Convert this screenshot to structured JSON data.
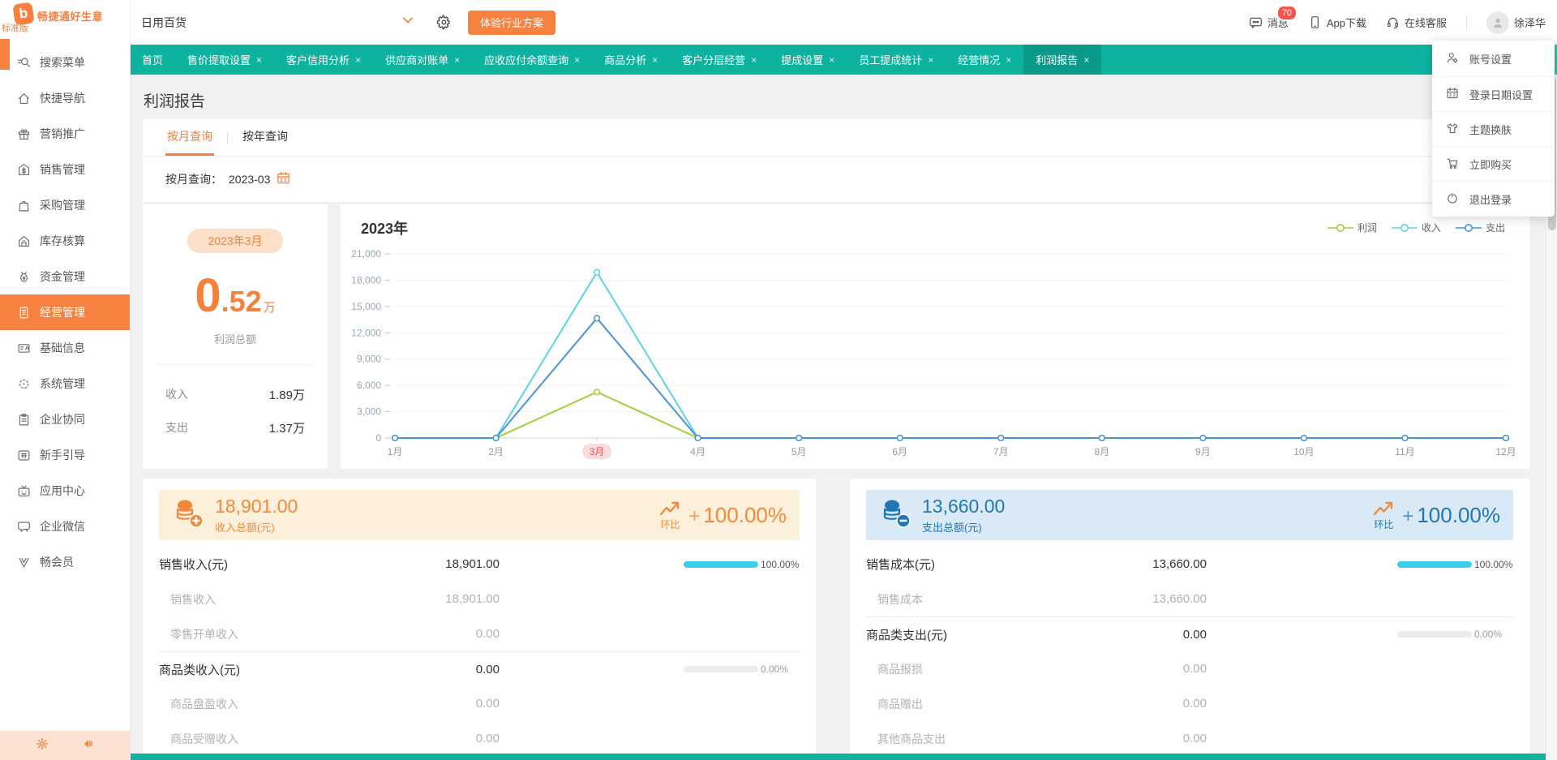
{
  "app": {
    "logo_text": "畅捷通好生意",
    "edition": "标准版",
    "logo_glyph": "b",
    "store_selector": "日用百货",
    "try_button": "体验行业方案",
    "messages_label": "消息",
    "messages_badge": "70",
    "app_download_label": "App下载",
    "online_service_label": "在线客服",
    "username": "徐泽华"
  },
  "sidebar": {
    "items": [
      {
        "key": "search",
        "label": "搜索菜单"
      },
      {
        "key": "quick-nav",
        "label": "快捷导航"
      },
      {
        "key": "marketing",
        "label": "营销推广"
      },
      {
        "key": "sales",
        "label": "销售管理"
      },
      {
        "key": "purchase",
        "label": "采购管理"
      },
      {
        "key": "inventory",
        "label": "库存核算"
      },
      {
        "key": "funds",
        "label": "资金管理"
      },
      {
        "key": "operations",
        "label": "经营管理",
        "active": true
      },
      {
        "key": "basic-info",
        "label": "基础信息"
      },
      {
        "key": "system",
        "label": "系统管理"
      },
      {
        "key": "collaboration",
        "label": "企业协同"
      },
      {
        "key": "beginner-guide",
        "label": "新手引导"
      },
      {
        "key": "app-center",
        "label": "应用中心"
      },
      {
        "key": "wecom",
        "label": "企业微信"
      },
      {
        "key": "member",
        "label": "畅会员"
      }
    ]
  },
  "tabs": [
    {
      "label": "首页",
      "closable": false
    },
    {
      "label": "售价提取设置",
      "closable": true
    },
    {
      "label": "客户信用分析",
      "closable": true
    },
    {
      "label": "供应商对账单",
      "closable": true
    },
    {
      "label": "应收应付余额查询",
      "closable": true
    },
    {
      "label": "商品分析",
      "closable": true
    },
    {
      "label": "客户分层经营",
      "closable": true
    },
    {
      "label": "提成设置",
      "closable": true
    },
    {
      "label": "员工提成统计",
      "closable": true
    },
    {
      "label": "经营情况",
      "closable": true
    },
    {
      "label": "利润报告",
      "closable": true,
      "active": true
    }
  ],
  "user_menu": {
    "items": [
      {
        "key": "account-settings",
        "label": "账号设置"
      },
      {
        "key": "login-date-settings",
        "label": "登录日期设置"
      },
      {
        "key": "theme-skin",
        "label": "主题换肤"
      },
      {
        "key": "buy-now",
        "label": "立即购买"
      },
      {
        "key": "logout",
        "label": "退出登录"
      }
    ]
  },
  "page": {
    "title": "利润报告",
    "query_tabs": [
      {
        "label": "按月查询",
        "active": true
      },
      {
        "label": "按年查询",
        "active": false
      }
    ],
    "query_label": "按月查询：",
    "query_value": "2023-03"
  },
  "summary": {
    "period": "2023年3月",
    "value_int": "0",
    "value_dec": ".52",
    "value_unit": "万",
    "value_label": "利润总额",
    "rows": [
      {
        "label": "收入",
        "value": "1.89万"
      },
      {
        "label": "支出",
        "value": "1.37万"
      }
    ]
  },
  "chart_data": {
    "type": "line",
    "title": "2023年",
    "categories": [
      "1月",
      "2月",
      "3月",
      "4月",
      "5月",
      "6月",
      "7月",
      "8月",
      "9月",
      "10月",
      "11月",
      "12月"
    ],
    "highlight_category": "3月",
    "series": [
      {
        "name": "利润",
        "color": "#a2ce39",
        "values": [
          0,
          0,
          5241,
          0,
          0,
          0,
          0,
          0,
          0,
          0,
          0,
          0
        ]
      },
      {
        "name": "收入",
        "color": "#5fd2e7",
        "values": [
          0,
          0,
          18901,
          0,
          0,
          0,
          0,
          0,
          0,
          0,
          0,
          0
        ]
      },
      {
        "name": "支出",
        "color": "#4795d8",
        "values": [
          0,
          0,
          13660,
          0,
          0,
          0,
          0,
          0,
          0,
          0,
          0,
          0
        ]
      }
    ],
    "yticks": [
      21000,
      18000,
      15000,
      12000,
      9000,
      6000,
      3000,
      0
    ],
    "ylim": [
      0,
      21000
    ],
    "grid": true,
    "legend_position": "top-right"
  },
  "income_card": {
    "total": "18,901.00",
    "total_label": "收入总额(元)",
    "ratio_label": "环比",
    "ratio_sign": "+",
    "ratio_value": "100.00%",
    "rows": [
      {
        "label": "销售收入(元)",
        "value": "18,901.00",
        "level": 0,
        "bar_pct": 100,
        "bar_label": "100.00%"
      },
      {
        "label": "销售收入",
        "value": "18,901.00",
        "level": 1
      },
      {
        "label": "零售开单收入",
        "value": "0.00",
        "level": 1
      },
      {
        "label": "商品类收入(元)",
        "value": "0.00",
        "level": 0,
        "bar_pct": 0,
        "bar_label": "0.00%",
        "section_start": true
      },
      {
        "label": "商品盘盈收入",
        "value": "0.00",
        "level": 1
      },
      {
        "label": "商品受赠收入",
        "value": "0.00",
        "level": 1
      }
    ]
  },
  "expense_card": {
    "total": "13,660.00",
    "total_label": "支出总额(元)",
    "ratio_label": "环比",
    "ratio_sign": "+",
    "ratio_value": "100.00%",
    "rows": [
      {
        "label": "销售成本(元)",
        "value": "13,660.00",
        "level": 0,
        "bar_pct": 100,
        "bar_label": "100.00%"
      },
      {
        "label": "销售成本",
        "value": "13,660.00",
        "level": 1
      },
      {
        "label": "商品类支出(元)",
        "value": "0.00",
        "level": 0,
        "bar_pct": 0,
        "bar_label": "0.00%",
        "section_start": true
      },
      {
        "label": "商品报损",
        "value": "0.00",
        "level": 1
      },
      {
        "label": "商品赠出",
        "value": "0.00",
        "level": 1
      },
      {
        "label": "其他商品支出",
        "value": "0.00",
        "level": 1
      }
    ]
  },
  "colors": {
    "accent_orange": "#f7823f",
    "teal": "#0eb3a0",
    "teal_active": "#0a9a89",
    "income_accent": "#f08a3a",
    "expense_accent": "#2176b5",
    "progress_cyan": "#3ecfe8",
    "highlight_red": "#e35454",
    "profit_green": "#a2ce39",
    "revenue_cyan": "#5fd2e7",
    "spend_blue": "#4795d8"
  }
}
